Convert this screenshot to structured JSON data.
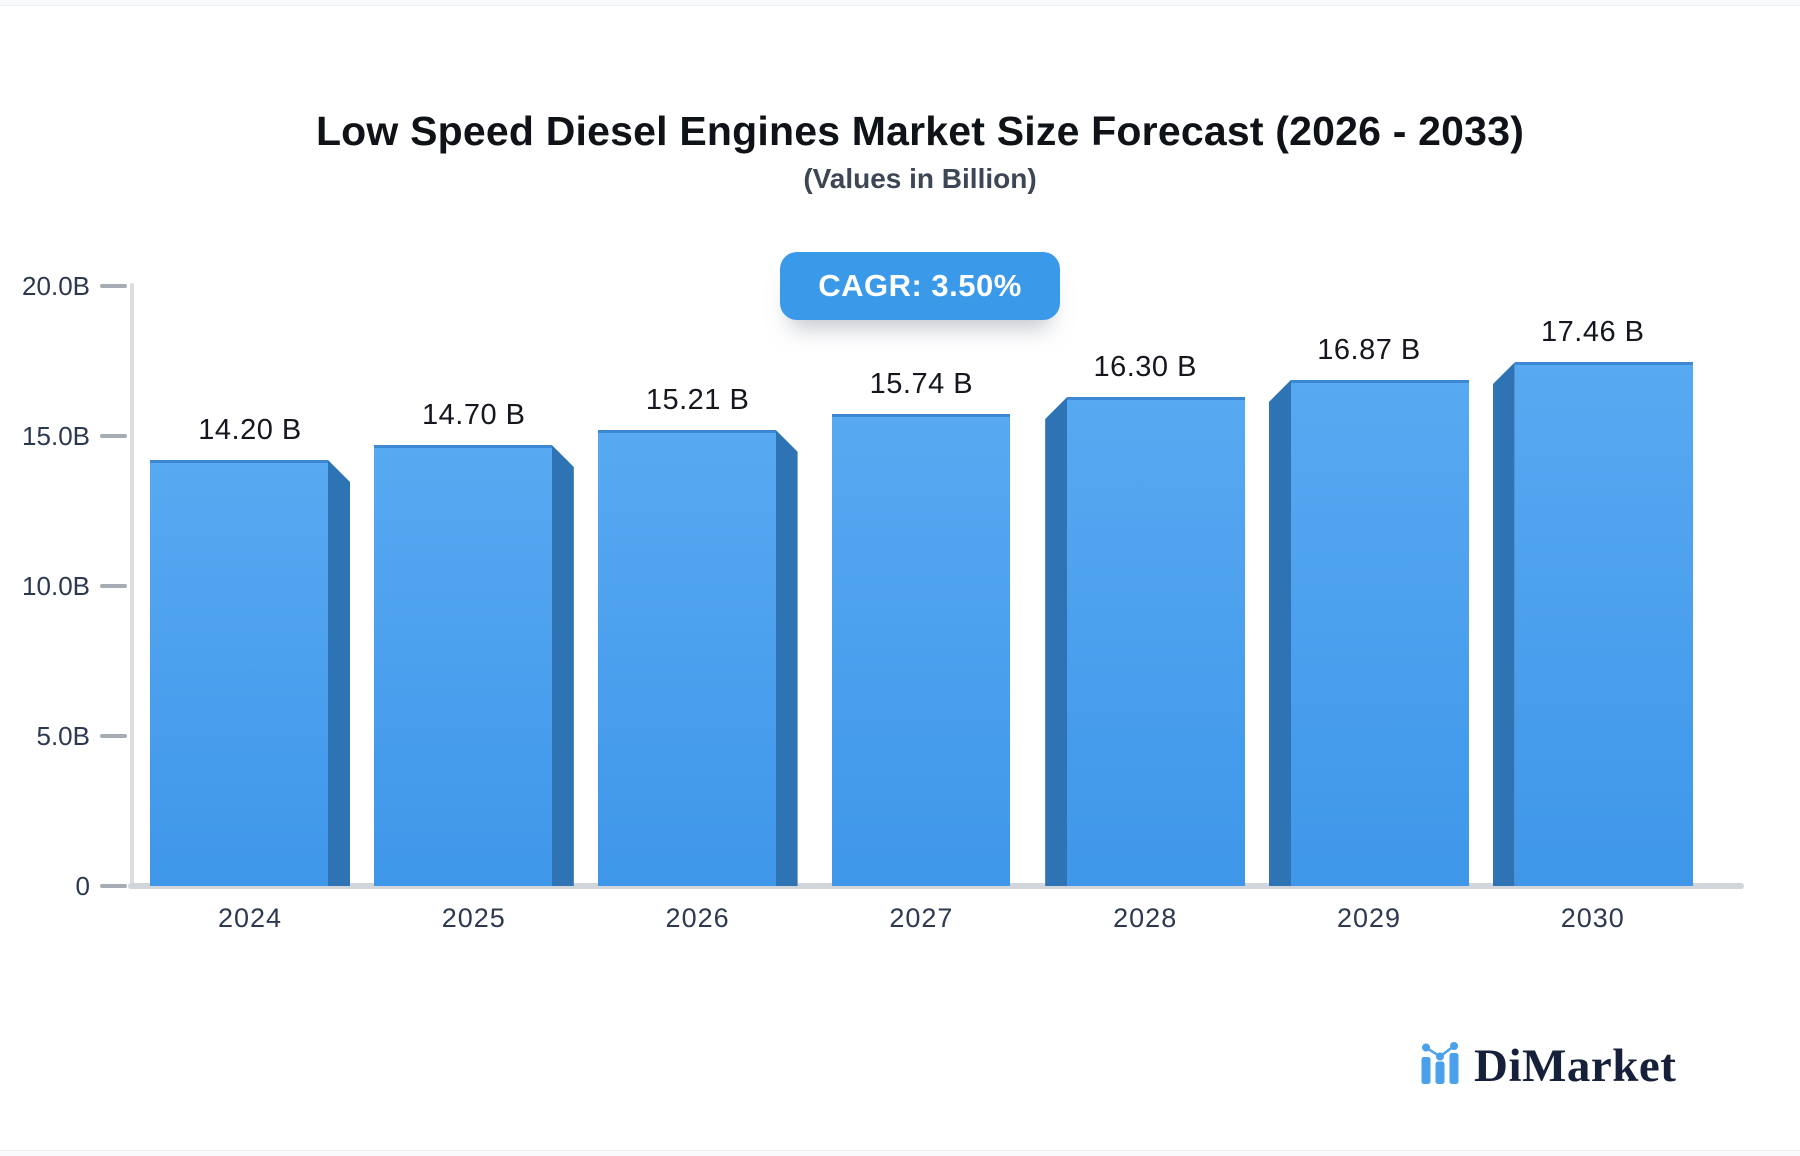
{
  "header": {
    "title": "Low Speed Diesel Engines Market Size Forecast (2026 - 2033)",
    "subtitle": "(Values in Billion)"
  },
  "badge": {
    "label": "CAGR: 3.50%",
    "color": "#3b99ea"
  },
  "chart_data": {
    "type": "bar",
    "title": "Low Speed Diesel Engines Market Size Forecast (2026 - 2033)",
    "subtitle": "(Values in Billion)",
    "xlabel": "",
    "ylabel": "",
    "unit": "Billion",
    "categories": [
      "2024",
      "2025",
      "2026",
      "2027",
      "2028",
      "2029",
      "2030"
    ],
    "values": [
      14.2,
      14.7,
      15.21,
      15.74,
      16.3,
      16.87,
      17.46
    ],
    "value_labels": [
      "14.20 B",
      "14.70 B",
      "15.21 B",
      "15.74 B",
      "16.30 B",
      "16.87 B",
      "17.46 B"
    ],
    "ylim": [
      0,
      20
    ],
    "y_ticks": [
      {
        "label": "20.0B",
        "value": 20
      },
      {
        "label": "15.0B",
        "value": 15
      },
      {
        "label": "10.0B",
        "value": 10
      },
      {
        "label": "5.0B",
        "value": 5
      },
      {
        "label": "0",
        "value": 0
      }
    ],
    "grid": false,
    "legend": false,
    "colors": {
      "bar_top": "#57a9f1",
      "bar_bottom": "#3f97ea",
      "bar_edge": "#3d88d3",
      "bar_side": "#2e73b4",
      "axis_line": "#d2d6da",
      "tick_text": "#2c3850",
      "value_text": "#14171d"
    }
  },
  "footer": {
    "brand": "DiMarket",
    "logo_icon": "bar-line-chart-icon",
    "logo_color": "#4aa0ea"
  }
}
